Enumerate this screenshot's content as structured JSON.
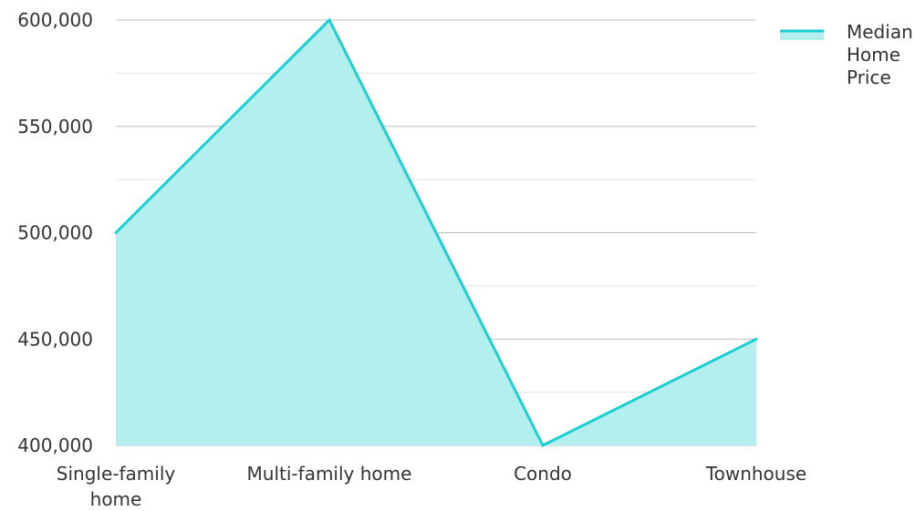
{
  "chart_data": {
    "type": "area",
    "categories": [
      "Single-family home",
      "Multi-family home",
      "Condo",
      "Townhouse"
    ],
    "category_label_lines": [
      [
        "Single-family",
        "home"
      ],
      [
        "Multi-family home"
      ],
      [
        "Condo"
      ],
      [
        "Townhouse"
      ]
    ],
    "series": [
      {
        "name": "Median Home Price",
        "values": [
          500000,
          600000,
          400000,
          450000
        ]
      }
    ],
    "ylim": [
      400000,
      600000
    ],
    "y_ticks": [
      400000,
      450000,
      500000,
      550000,
      600000
    ],
    "y_tick_labels": [
      "400,000",
      "450,000",
      "500,000",
      "550,000",
      "600,000"
    ],
    "y_minor_step": 25000,
    "grid": true,
    "legend": {
      "position": "top-right",
      "label_lines": [
        "Median",
        "Home",
        "Price"
      ]
    },
    "colors": {
      "line": "#1ccfd0",
      "fill": "#b2efee",
      "grid_major": "#bdbdbd",
      "grid_minor": "#e3e3e3",
      "text": "#333333"
    },
    "title": "",
    "xlabel": "",
    "ylabel": ""
  }
}
